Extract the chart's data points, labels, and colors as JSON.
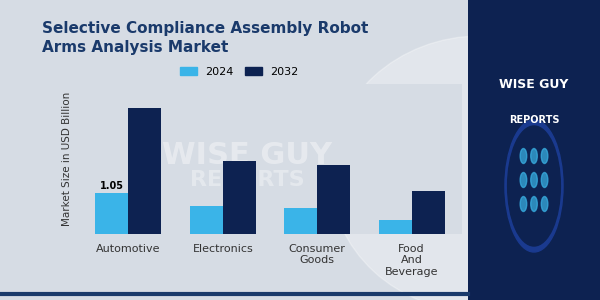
{
  "title": "Selective Compliance Assembly Robot\nArms Analysis Market",
  "ylabel": "Market Size in USD Billion",
  "categories": [
    "Automotive",
    "Electronics",
    "Consumer\nGoods",
    "Food\nAnd\nBeverage"
  ],
  "values_2024": [
    1.05,
    0.72,
    0.65,
    0.35
  ],
  "values_2032": [
    3.2,
    1.85,
    1.75,
    1.1
  ],
  "color_2024": "#3ab4e8",
  "color_2032": "#0d2251",
  "annotation_val": "1.05",
  "legend_labels": [
    "2024",
    "2032"
  ],
  "bg_color": "#d6dce4",
  "plot_bg_color": "#d6dce4",
  "border_color": "#1a3a6b",
  "title_color": "#1a3a6b",
  "logo_bg_color": "#0d2251",
  "bar_width": 0.35,
  "ylim": [
    0,
    3.8
  ]
}
